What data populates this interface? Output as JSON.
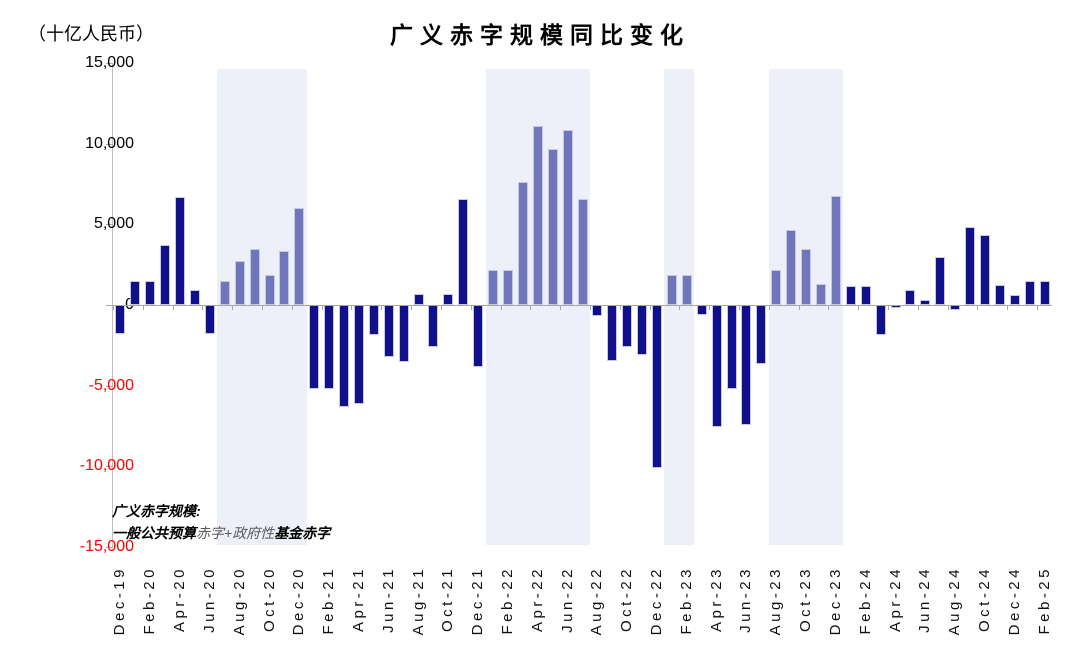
{
  "header": {
    "title": "广义赤字规模同比变化",
    "unit_label": "（十亿人民币）"
  },
  "annotation": {
    "line1": "广义赤字规模:",
    "line2_parts": [
      {
        "text": "一般公共预算",
        "bold": true
      },
      {
        "text": "赤字+",
        "bold": false
      },
      {
        "text": "政府性",
        "bold": false
      },
      {
        "text": "基金赤字",
        "bold": true
      }
    ]
  },
  "chart_data": {
    "type": "bar",
    "title": "广义赤字规模同比变化",
    "ylabel": "（十亿人民币）",
    "ylim": [
      -15000,
      15000
    ],
    "ytick_interval": 5000,
    "ytick_labels": [
      "15,000",
      "10,000",
      "5,000",
      "0",
      "-5,000",
      "-10,000",
      "-15,000"
    ],
    "grid": false,
    "legend": "none",
    "x_label_every": 2,
    "categories": [
      "Dec-19",
      "Jan-20",
      "Feb-20",
      "Mar-20",
      "Apr-20",
      "May-20",
      "Jun-20",
      "Jul-20",
      "Aug-20",
      "Sep-20",
      "Oct-20",
      "Nov-20",
      "Dec-20",
      "Jan-21",
      "Feb-21",
      "Mar-21",
      "Apr-21",
      "May-21",
      "Jun-21",
      "Jul-21",
      "Aug-21",
      "Sep-21",
      "Oct-21",
      "Nov-21",
      "Dec-21",
      "Jan-22",
      "Feb-22",
      "Mar-22",
      "Apr-22",
      "May-22",
      "Jun-22",
      "Jul-22",
      "Aug-22",
      "Sep-22",
      "Oct-22",
      "Nov-22",
      "Dec-22",
      "Jan-23",
      "Feb-23",
      "Mar-23",
      "Apr-23",
      "May-23",
      "Jun-23",
      "Jul-23",
      "Aug-23",
      "Sep-23",
      "Oct-23",
      "Nov-23",
      "Dec-23",
      "Jan-24",
      "Feb-24",
      "Mar-24",
      "Apr-24",
      "May-24",
      "Jun-24",
      "Jul-24",
      "Aug-24",
      "Sep-24",
      "Oct-24",
      "Nov-24",
      "Dec-24",
      "Jan-25",
      "Feb-25"
    ],
    "values": [
      -1800,
      1500,
      1500,
      3700,
      6700,
      950,
      -1800,
      1500,
      2700,
      3450,
      1850,
      3350,
      6000,
      -5200,
      -5200,
      -6300,
      -6150,
      -1850,
      -3200,
      -3550,
      700,
      -2600,
      700,
      6600,
      -3850,
      2200,
      2200,
      7650,
      11100,
      9650,
      10850,
      6550,
      -700,
      -3500,
      -2600,
      -3100,
      -10100,
      1850,
      1850,
      -650,
      -7550,
      -5200,
      -7450,
      -3650,
      2200,
      4650,
      3500,
      1300,
      6750,
      1150,
      1150,
      -1850,
      -200,
      900,
      300,
      2950,
      -300,
      4850,
      4350,
      1250,
      650,
      1500,
      1500
    ],
    "highlight_ranges": [
      [
        7,
        12
      ],
      [
        25,
        31
      ],
      [
        37,
        38
      ],
      [
        44,
        48
      ]
    ],
    "colors": {
      "bar_dark": "#10108C",
      "bar_light": "#7076BC",
      "band": "#EDF0F8",
      "negative_tick_label": "#FF0000",
      "positive_tick_label": "#000000",
      "axis": "#A6A6A6"
    }
  }
}
